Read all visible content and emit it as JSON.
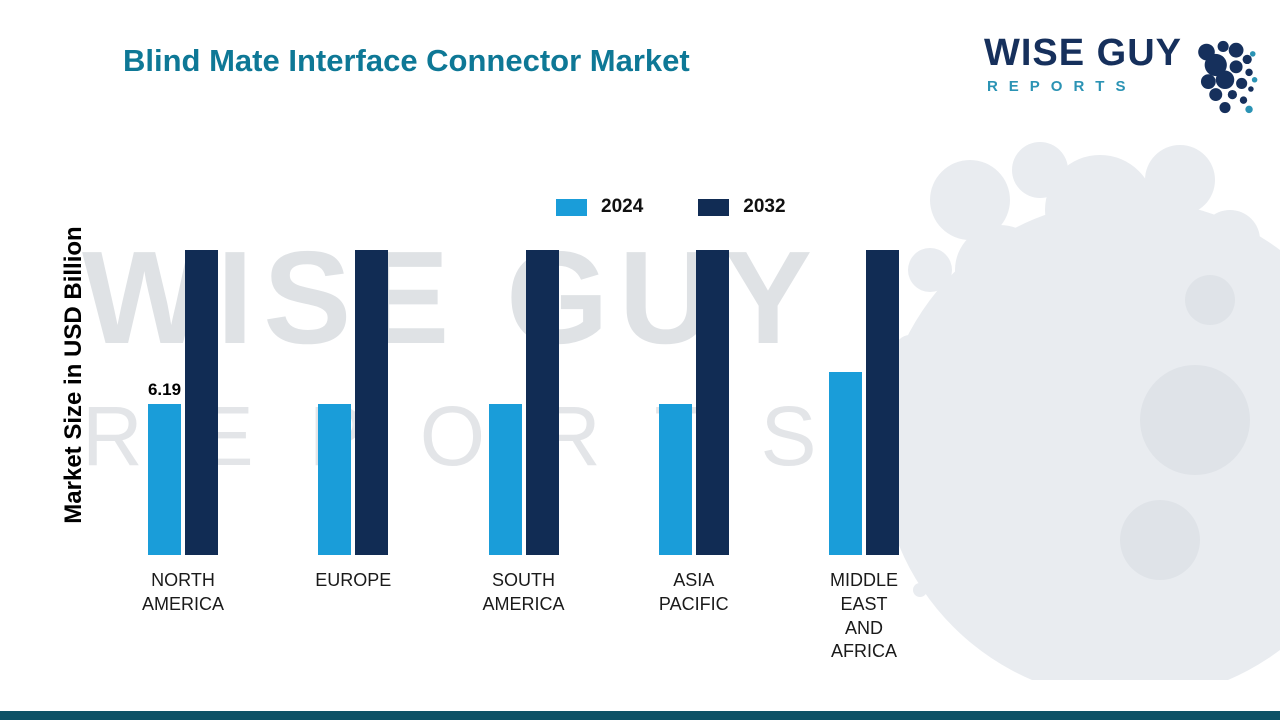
{
  "page": {
    "title": "Blind Mate Interface Connector Market"
  },
  "logo": {
    "brand": "WISE GUY",
    "sub": "REPORTS"
  },
  "watermark": {
    "line1": "WISE GUY",
    "line2": "REPORTS"
  },
  "chart": {
    "y_axis_label": "Market Size in USD Billion",
    "axis_labels": [
      "NORTH\nAMERICA",
      "EUROPE",
      "SOUTH\nAMERICA",
      "ASIA\nPACIFIC",
      "MIDDLE\nEAST\nAND\nAFRICA"
    ]
  },
  "chart_data": {
    "type": "bar",
    "title": "Blind Mate Interface Connector Market",
    "xlabel": "",
    "ylabel": "Market Size in USD Billion",
    "categories": [
      "NORTH AMERICA",
      "EUROPE",
      "SOUTH AMERICA",
      "ASIA PACIFIC",
      "MIDDLE EAST AND AFRICA"
    ],
    "series": [
      {
        "name": "2024",
        "color": "#1A9DD9",
        "values": [
          6.19,
          6.19,
          6.19,
          6.19,
          7.5
        ]
      },
      {
        "name": "2032",
        "color": "#112C54",
        "values": [
          12.5,
          12.5,
          12.5,
          12.5,
          12.5
        ]
      }
    ],
    "ylim": [
      0,
      12.5
    ],
    "grid": false,
    "legend_position": "top",
    "annotations": [
      {
        "series": "2024",
        "category_index": 0,
        "text": "6.19"
      }
    ]
  },
  "colors": {
    "title_teal": "#0E7896",
    "bar_2024": "#1A9DD9",
    "bar_2032": "#112C54",
    "bottom_bar": "#0D5166",
    "logo_navy": "#16305C",
    "logo_teal": "#2B93B4",
    "watermark_gray": "#BCC1C9"
  }
}
